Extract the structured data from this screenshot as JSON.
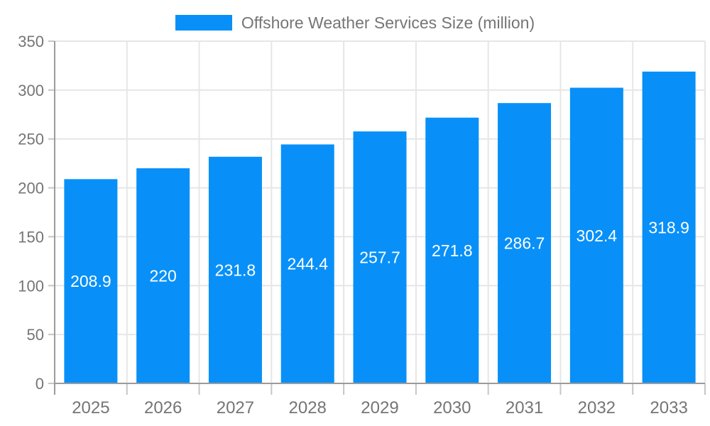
{
  "legend": {
    "label": "Offshore Weather Services Size (million)"
  },
  "chart_data": {
    "type": "bar",
    "title": "Offshore Weather Services Size (million)",
    "series_name": "Offshore Weather Services Size (million)",
    "categories": [
      "2025",
      "2026",
      "2027",
      "2028",
      "2029",
      "2030",
      "2031",
      "2032",
      "2033"
    ],
    "values": [
      208.9,
      220,
      231.8,
      244.4,
      257.7,
      271.8,
      286.7,
      302.4,
      318.9
    ],
    "xlabel": "",
    "ylabel": "",
    "ylim": [
      0,
      350
    ],
    "y_ticks": [
      0,
      50,
      100,
      150,
      200,
      250,
      300,
      350
    ],
    "grid": true,
    "legend_position": "top",
    "bar_labels_inside": true,
    "colors": {
      "bar": "#0890f8",
      "bar_label": "#ffffff",
      "axis_text": "#757575",
      "grid_line": "#e6e6e6",
      "axis_line": "#9b9b9b",
      "tick_mark": "#c6c6c6",
      "background": "#ffffff"
    }
  }
}
